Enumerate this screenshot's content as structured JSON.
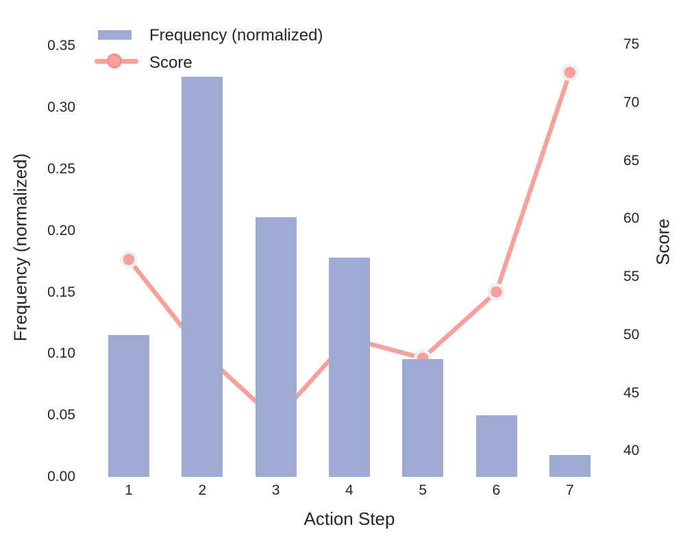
{
  "chart_data": {
    "type": "bar",
    "subtype": "dual-axis bar + line",
    "categories": [
      "1",
      "2",
      "3",
      "4",
      "5",
      "6",
      "7"
    ],
    "series": [
      {
        "name": "Frequency (normalized)",
        "type": "bar",
        "axis": "left",
        "color": "#9dabd2",
        "values": [
          0.115,
          0.325,
          0.211,
          0.178,
          0.096,
          0.05,
          0.018
        ]
      },
      {
        "name": "Score",
        "type": "line",
        "axis": "right",
        "color": "#f9a09d",
        "marker_edge_color": "#eef0f7",
        "values": [
          56.5,
          48.5,
          42.7,
          49.7,
          48.0,
          53.7,
          72.6
        ]
      }
    ],
    "xlabel": "Action Step",
    "ylabel_left": "Frequency (normalized)",
    "ylabel_right": "Score",
    "yticks_left": [
      "0.00",
      "0.05",
      "0.10",
      "0.15",
      "0.20",
      "0.25",
      "0.30",
      "0.35"
    ],
    "yticks_right": [
      "40",
      "45",
      "50",
      "55",
      "60",
      "65",
      "70",
      "75"
    ],
    "ylim_left": [
      0,
      0.35
    ],
    "ylim_right": [
      40,
      75
    ],
    "grid": false,
    "legend_position": "upper left",
    "legend": [
      {
        "label": "Frequency (normalized)"
      },
      {
        "label": "Score"
      }
    ]
  }
}
